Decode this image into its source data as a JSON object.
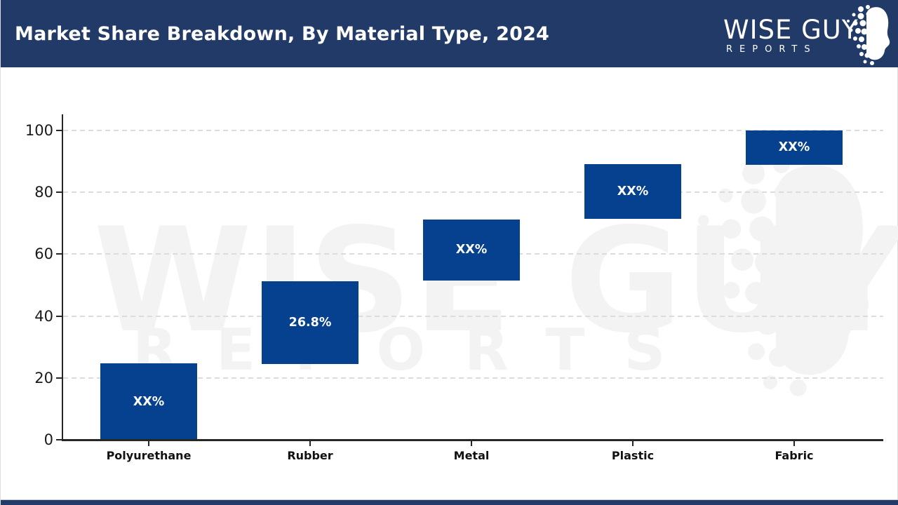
{
  "header": {
    "title": "Market Share Breakdown, By Material Type, 2024",
    "logo": {
      "line1": "WISE GUY",
      "line2": "REPORTS"
    },
    "background_color": "#223a67"
  },
  "watermark": {
    "line1": "WISE GUY",
    "line2": "REPORTS"
  },
  "chart_data": {
    "type": "bar",
    "subtype": "waterfall-stacked-steps",
    "title": "Market Share Breakdown, By Material Type, 2024",
    "xlabel": "",
    "ylabel": "",
    "categories": [
      "Polyurethane",
      "Rubber",
      "Metal",
      "Plastic",
      "Fabric"
    ],
    "segments": [
      {
        "category": "Polyurethane",
        "start": 0,
        "end": 24.7,
        "label": "XX%"
      },
      {
        "category": "Rubber",
        "start": 24.5,
        "end": 51.3,
        "label": "26.8%"
      },
      {
        "category": "Metal",
        "start": 51.5,
        "end": 71.3,
        "label": "XX%"
      },
      {
        "category": "Plastic",
        "start": 71.5,
        "end": 89.2,
        "label": "XX%"
      },
      {
        "category": "Fabric",
        "start": 89.0,
        "end": 100,
        "label": "XX%"
      }
    ],
    "yticks": [
      0,
      20,
      40,
      60,
      80,
      100
    ],
    "ylim": [
      0,
      105
    ],
    "grid": "horizontal-dashed",
    "legend": "none",
    "bar_color": "#05418f",
    "bar_label_color": "#ffffff",
    "axis_color": "#262626",
    "gridline_color": "#dcdcdc"
  }
}
